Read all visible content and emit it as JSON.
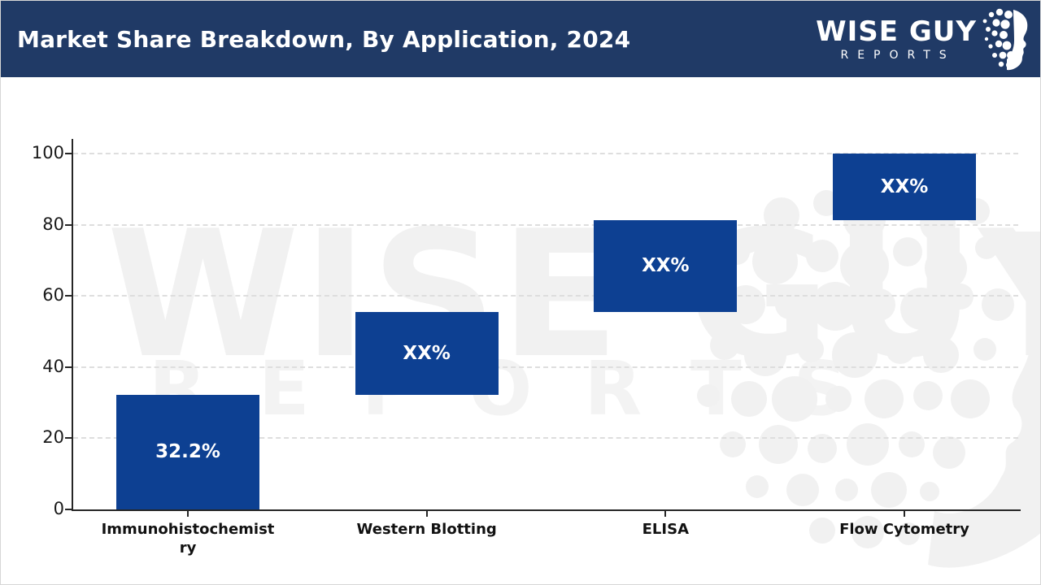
{
  "header": {
    "title": "Market Share Breakdown, By Application, 2024",
    "logo": {
      "line1": "WISE GUY",
      "line2": "REPORTS"
    }
  },
  "watermark": {
    "line1": "WISE GUY",
    "line2": "REPORTS"
  },
  "colors": {
    "header_bg": "#203a66",
    "bar_blue": "#0d4092",
    "grid_gray": "#dedede",
    "axis_dark": "#262626",
    "watermark_gray": "#f1f1f1"
  },
  "chart_data": {
    "type": "bar",
    "subtype": "waterfall",
    "title": "Market Share Breakdown, By Application, 2024",
    "categories": [
      "Immunohistochemistry",
      "Western Blotting",
      "ELISA",
      "Flow Cytometry"
    ],
    "category_display": [
      "Immunohistochemist\nry",
      "Western Blotting",
      "ELISA",
      "Flow Cytometry"
    ],
    "series": [
      {
        "name": "Market Share (%)",
        "segments": [
          {
            "category": "Immunohistochemistry",
            "start": 0,
            "end": 32.2,
            "label": "32.2%"
          },
          {
            "category": "Western Blotting",
            "start": 32.2,
            "end": 55.5,
            "label": "XX%"
          },
          {
            "category": "ELISA",
            "start": 55.5,
            "end": 81.3,
            "label": "XX%"
          },
          {
            "category": "Flow Cytometry",
            "start": 81.3,
            "end": 100,
            "label": "XX%"
          }
        ]
      }
    ],
    "ylim": [
      0,
      100
    ],
    "yticks": [
      0,
      20,
      40,
      60,
      80,
      100
    ],
    "xlabel": "",
    "ylabel": "",
    "grid": "horizontal-dashed",
    "legend": "none",
    "bar_color": "#0d4092",
    "bar_label_color": "#ffffff"
  }
}
